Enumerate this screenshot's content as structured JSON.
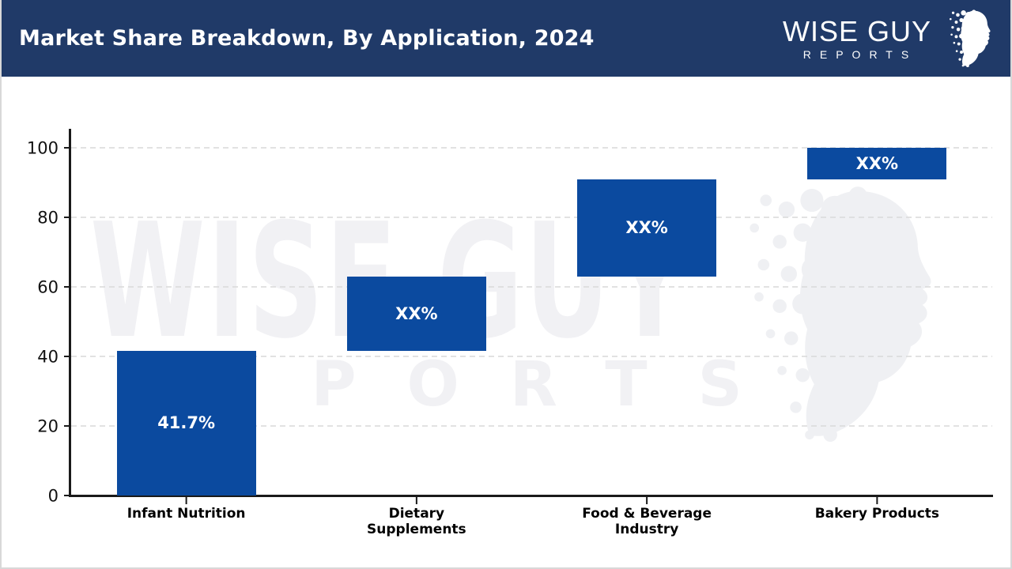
{
  "header": {
    "title": "Market Share Breakdown, By Application, 2024",
    "logo": {
      "line1": "WISE GUY",
      "line2": "REPORTS"
    }
  },
  "watermark": {
    "line1": "WISE GUY",
    "line2": "REPORTS"
  },
  "colors": {
    "header_bg": "#203a68",
    "title_text": "#ffffff",
    "bar": "#0b4a9f",
    "bar_label": "#ffffff",
    "grid": "#d9d9d9",
    "axis": "#1a1a1a",
    "tick_text": "#111111",
    "watermark": "#f1f1f4",
    "page_border": "#d8d8d8"
  },
  "chart_data": {
    "type": "bar",
    "subtype": "waterfall",
    "title": "Market Share Breakdown, By Application, 2024",
    "categories": [
      "Infant Nutrition",
      "Dietary Supplements",
      "Food & Beverage Industry",
      "Bakery Products"
    ],
    "category_label_lines": [
      [
        "Infant Nutrition"
      ],
      [
        "Dietary",
        "Supplements"
      ],
      [
        "Food & Beverage",
        "Industry"
      ],
      [
        "Bakery Products"
      ]
    ],
    "segments": [
      {
        "category": "Infant Nutrition",
        "start": 0,
        "end": 41.7,
        "label": "41.7%"
      },
      {
        "category": "Dietary Supplements",
        "start": 41.7,
        "end": 63,
        "label": "XX%"
      },
      {
        "category": "Food & Beverage Industry",
        "start": 63,
        "end": 91,
        "label": "XX%"
      },
      {
        "category": "Bakery Products",
        "start": 91,
        "end": 100,
        "label": "XX%"
      }
    ],
    "xlabel": "",
    "ylabel": "",
    "yticks": [
      0,
      20,
      40,
      60,
      80,
      100
    ],
    "ylim": [
      0,
      105
    ],
    "grid": "horizontal-dashed",
    "legend": "none"
  }
}
